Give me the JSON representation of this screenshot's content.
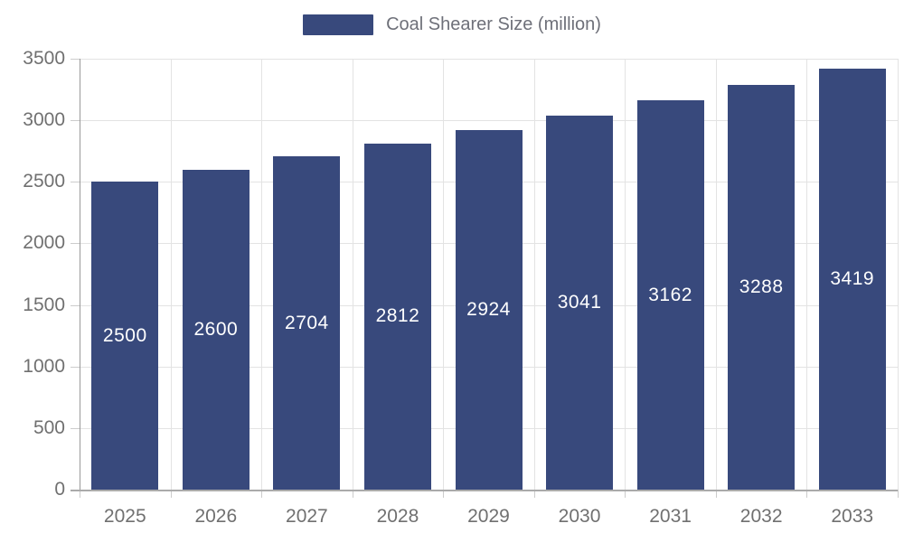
{
  "legend": {
    "label": "Coal Shearer Size (million)",
    "swatch_color": "#38497C"
  },
  "chart_data": {
    "type": "bar",
    "title": "Coal Shearer Size (million)",
    "categories": [
      "2025",
      "2026",
      "2027",
      "2028",
      "2029",
      "2030",
      "2031",
      "2032",
      "2033"
    ],
    "values": [
      2500,
      2600,
      2704,
      2812,
      2924,
      3041,
      3162,
      3288,
      3419
    ],
    "xlabel": "",
    "ylabel": "",
    "ylim": [
      0,
      3500
    ],
    "y_ticks": [
      0,
      500,
      1000,
      1500,
      2000,
      2500,
      3000,
      3500
    ],
    "grid": true,
    "legend_position": "top",
    "bar_color": "#38497C",
    "value_label_color": "#ffffff",
    "axis_text_color": "#707070"
  }
}
